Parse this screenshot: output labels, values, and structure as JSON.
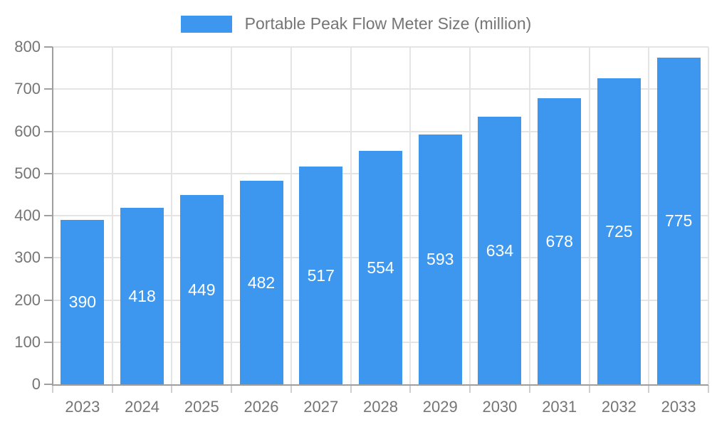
{
  "chart_data": {
    "type": "bar",
    "title": "Portable Peak Flow Meter Size (million)",
    "legend": {
      "label": "Portable Peak Flow Meter Size (million)",
      "position": "top-center"
    },
    "series_name": "Portable Peak Flow Meter Size (million)",
    "categories": [
      "2023",
      "2024",
      "2025",
      "2026",
      "2027",
      "2028",
      "2029",
      "2030",
      "2031",
      "2032",
      "2033"
    ],
    "values": [
      390,
      418,
      449,
      482,
      517,
      554,
      593,
      634,
      678,
      725,
      775
    ],
    "xlabel": "",
    "ylabel": "",
    "ylim": [
      0,
      800
    ],
    "ytick_step": 100,
    "yticks": [
      0,
      100,
      200,
      300,
      400,
      500,
      600,
      700,
      800
    ],
    "grid": true,
    "value_labels": "inside-center-white",
    "colors": {
      "bar": "#3D97EE",
      "axis_label_text": "#757575",
      "legend_text": "#757575",
      "gridline": "#e4e4e4",
      "axis_line": "#9e9e9e",
      "bar_value_text": "#ffffff",
      "background": "#ffffff"
    }
  }
}
